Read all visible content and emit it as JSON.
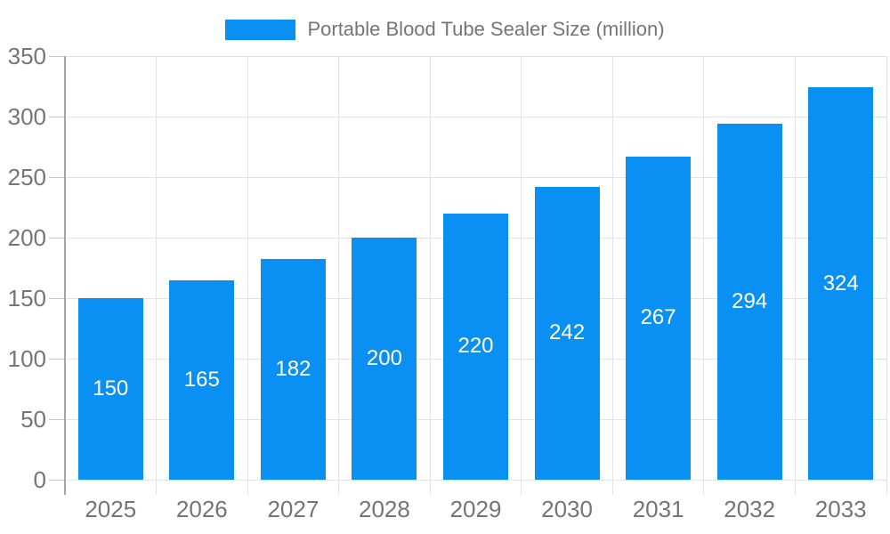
{
  "chart_data": {
    "type": "bar",
    "title": "Portable Blood Tube Sealer Size (million)",
    "categories": [
      "2025",
      "2026",
      "2027",
      "2028",
      "2029",
      "2030",
      "2031",
      "2032",
      "2033"
    ],
    "values": [
      150,
      165,
      182,
      200,
      220,
      242,
      267,
      294,
      324
    ],
    "xlabel": "",
    "ylabel": "",
    "ylim": [
      0,
      350
    ],
    "yticks": [
      0,
      50,
      100,
      150,
      200,
      250,
      300,
      350
    ],
    "grid": true,
    "legend_position": "top-center",
    "value_labels": "inside-center-white",
    "colors": {
      "bar": "#0a90f2",
      "axis_text": "#757575",
      "gridline": "#e3e3e3",
      "tick": "#c9c9c9",
      "axis_line": "#a6a6a6",
      "value_text": "#ffffff",
      "background": "#ffffff"
    }
  }
}
